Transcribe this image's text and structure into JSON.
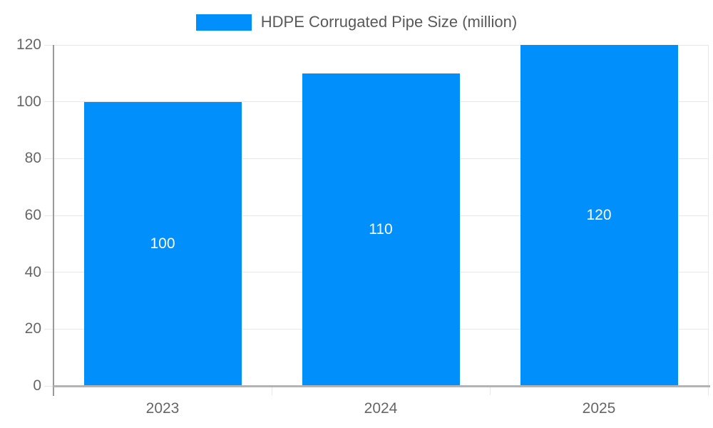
{
  "chart_data": {
    "type": "bar",
    "title": "HDPE Corrugated Pipe Size (million)",
    "categories": [
      "2023",
      "2024",
      "2025"
    ],
    "values": [
      100,
      110,
      120
    ],
    "data_labels": [
      "100",
      "110",
      "120"
    ],
    "xlabel": "",
    "ylabel": "",
    "ylim": [
      0,
      120
    ],
    "yticks": [
      0,
      20,
      40,
      60,
      80,
      100,
      120
    ],
    "grid": true,
    "legend_position": "top",
    "colors": {
      "bar": "#008FFB",
      "value_label": "#FFFFFF",
      "axis_text": "#666666",
      "legend_text": "#595959",
      "gridline": "#E7E7E7",
      "axis_line": "#999999",
      "baseline": "#B3B3B3"
    }
  }
}
